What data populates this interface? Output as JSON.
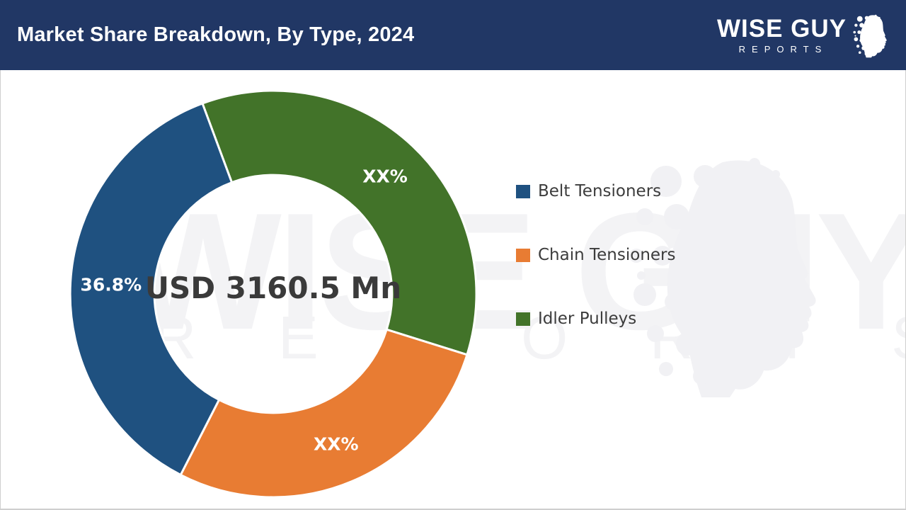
{
  "header": {
    "title": "Market Share Breakdown, By Type, 2024",
    "logo": {
      "line1": "WISE GUY",
      "line2": "REPORTS"
    }
  },
  "watermark": {
    "line1": "WISE GUY",
    "line2": "R E P O R T S"
  },
  "colors": {
    "header_background": "#213765",
    "blue": "#1F5180",
    "orange": "#E87C33",
    "green": "#427329",
    "text_dark": "#3a3a3a",
    "watermark": "#f3f3f5"
  },
  "chart_data": {
    "type": "donut",
    "title": "Market Share Breakdown, By Type, 2024",
    "center_label": "USD 3160.5 Mn",
    "start_angle_deg": -20.4,
    "inner_radius_ratio": 0.585,
    "outer_radius_px": 287,
    "label_radius_ratio": 0.8,
    "legend_position": "right",
    "segments": [
      {
        "name": "Idler Pulleys",
        "value": 35.5,
        "display_label": "XX%",
        "color": "#427329"
      },
      {
        "name": "Chain Tensioners",
        "value": 27.7,
        "display_label": "XX%",
        "color": "#E87C33"
      },
      {
        "name": "Belt Tensioners",
        "value": 36.8,
        "display_label": "36.8%",
        "color": "#1F5180"
      }
    ],
    "legend_order": [
      2,
      1,
      0
    ]
  }
}
